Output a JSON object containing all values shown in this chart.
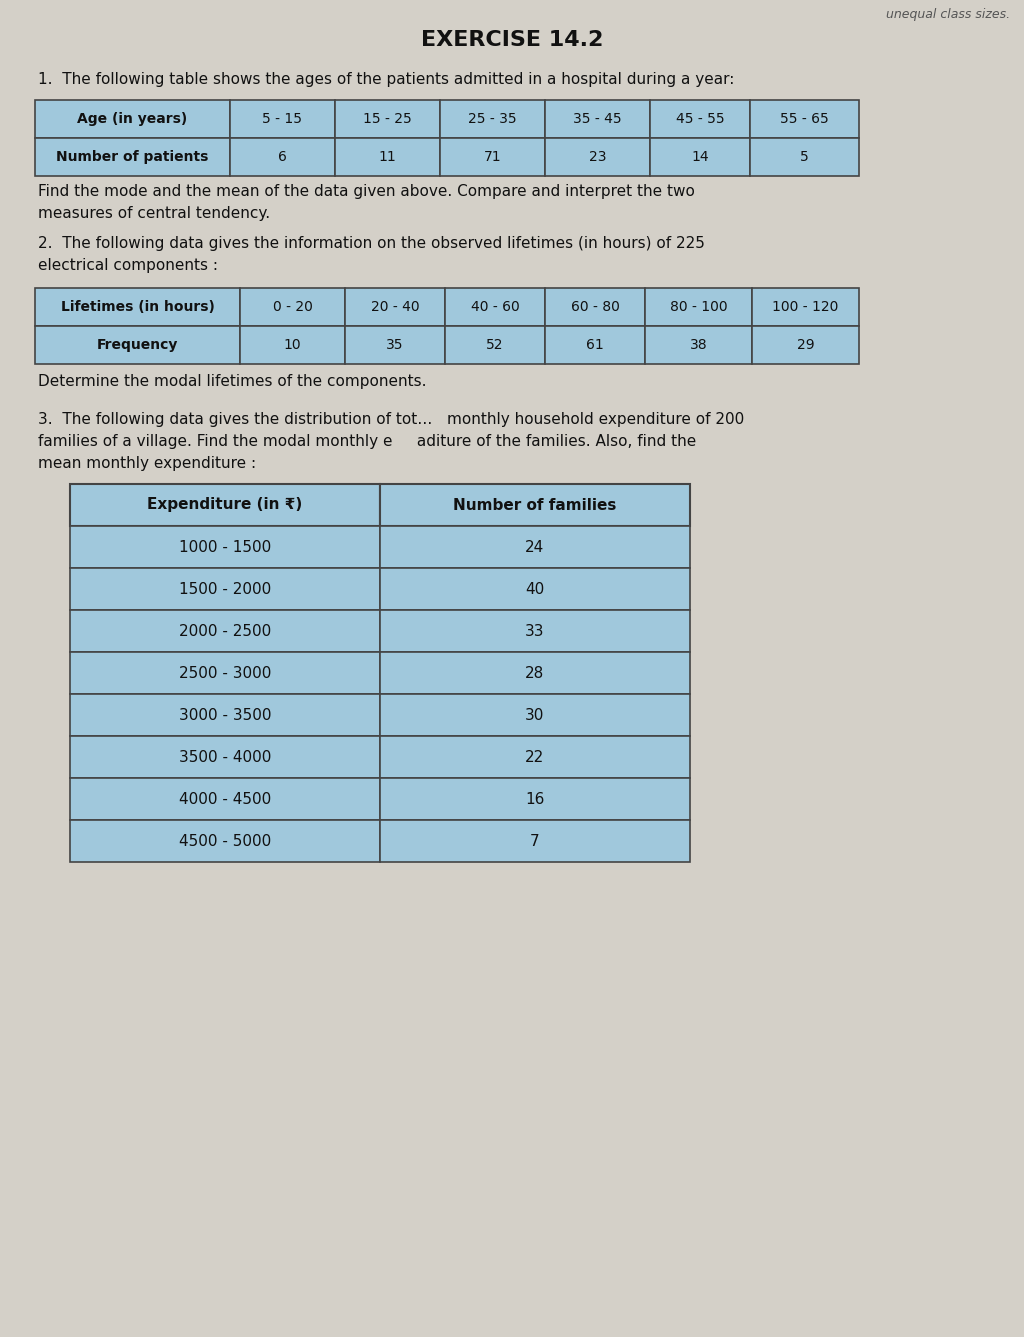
{
  "title": "EXERCISE 14.2",
  "bg_color": "#d4d0c8",
  "table_bg": "#a0c8dc",
  "table_border": "#444444",
  "q1_text_line1": "1.  The following table shows the ages of the patients admitted in a hospital during a year:",
  "q1_table_headers": [
    "Age (in years)",
    "5 - 15",
    "15 - 25",
    "25 - 35",
    "35 - 45",
    "45 - 55",
    "55 - 65"
  ],
  "q1_table_row2_header": "Number of patients",
  "q1_table_row2_values": [
    "6",
    "11",
    "71",
    "23",
    "14",
    "5"
  ],
  "q1_footer_line1": "Find the mode and the mean of the data given above. Compare and interpret the two",
  "q1_footer_line2": "measures of central tendency.",
  "q2_text_line1": "2.  The following data gives the information on the observed lifetimes (in hours) of 225",
  "q2_text_line2": "electrical components :",
  "q2_table_headers": [
    "Lifetimes (in hours)",
    "0 - 20",
    "20 - 40",
    "40 - 60",
    "60 - 80",
    "80 - 100",
    "100 - 120"
  ],
  "q2_table_row2_header": "Frequency",
  "q2_table_row2_values": [
    "10",
    "35",
    "52",
    "61",
    "38",
    "29"
  ],
  "q2_footer": "Determine the modal lifetimes of the components.",
  "q3_text_line1": "3.  The following data gives the distribution of tot…   monthly household expenditure of 200",
  "q3_text_line2": "families of a village. Find the modal monthly e     aditure of the families. Also, find the",
  "q3_text_line3": "mean monthly expenditure :",
  "q3_col1_header": "Expenditure (in ₹)",
  "q3_col2_header": "Number of families",
  "q3_rows": [
    [
      "1000 - 1500",
      "24"
    ],
    [
      "1500 - 2000",
      "40"
    ],
    [
      "2000 - 2500",
      "33"
    ],
    [
      "2500 - 3000",
      "28"
    ],
    [
      "3000 - 3500",
      "30"
    ],
    [
      "3500 - 4000",
      "22"
    ],
    [
      "4000 - 4500",
      "16"
    ],
    [
      "4500 - 5000",
      "7"
    ]
  ],
  "top_right_text": "unequal class sizes.",
  "font_color": "#111111"
}
